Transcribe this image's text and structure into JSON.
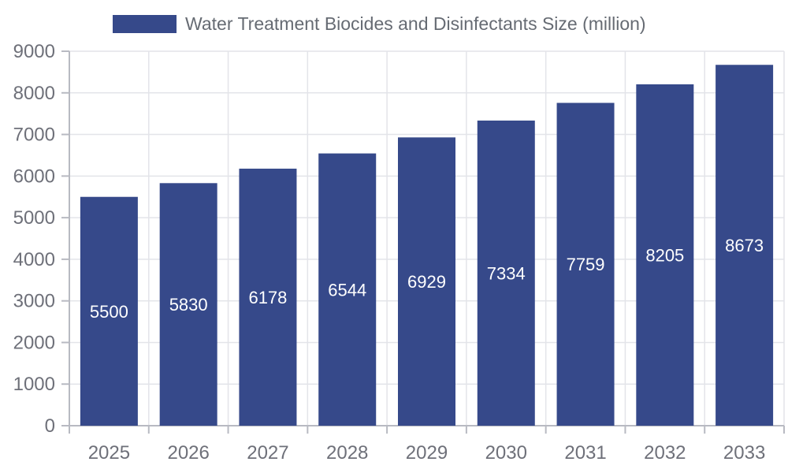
{
  "chart_data": {
    "type": "bar",
    "title": "Water Treatment Biocides and Disinfectants Size (million)",
    "categories": [
      "2025",
      "2026",
      "2027",
      "2028",
      "2029",
      "2030",
      "2031",
      "2032",
      "2033"
    ],
    "values": [
      5500,
      5830,
      6178,
      6544,
      6929,
      7334,
      7759,
      8205,
      8673
    ],
    "xlabel": "",
    "ylabel": "",
    "ylim": [
      0,
      9000
    ],
    "ytick_step": 1000,
    "grid": true,
    "legend_position": "top",
    "value_labels_position": "inside-center"
  },
  "colors": {
    "bar_fill": "#36498A",
    "bar_value_text": "#FFFFFF",
    "axis_text": "#6E7079",
    "legend_text": "#666B73",
    "grid_line": "#E3E4E9",
    "axis_line": "#B8BAC2",
    "background": "#FFFFFF"
  }
}
